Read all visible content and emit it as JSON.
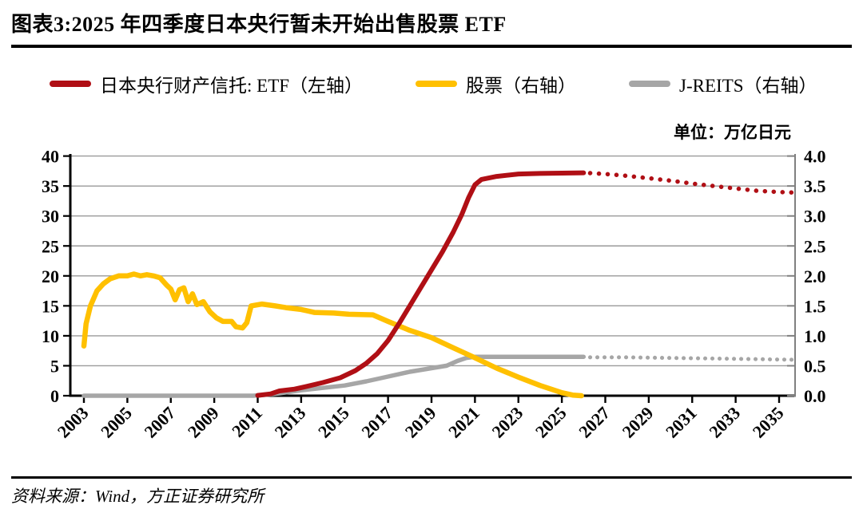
{
  "title": "图表3:2025 年四季度日本央行暂未开始出售股票 ETF",
  "unit_label": "单位：万亿日元",
  "source": "资料来源：Wind，方正证券研究所",
  "legend": [
    {
      "label": "日本央行财产信托: ETF（左轴）",
      "color": "#B00F15"
    },
    {
      "label": "股票（右轴）",
      "color": "#FFC000"
    },
    {
      "label": "J-REITS（右轴）",
      "color": "#A6A6A6"
    }
  ],
  "chart_data": {
    "type": "line",
    "title": "图表3:2025 年四季度日本央行暂未开始出售股票 ETF",
    "unit": "万亿日元",
    "grid": true,
    "legend_position": "top",
    "x_ticks": [
      2003,
      2005,
      2007,
      2009,
      2011,
      2013,
      2015,
      2017,
      2019,
      2021,
      2023,
      2025,
      2027,
      2029,
      2031,
      2033,
      2035
    ],
    "x_range": [
      2002.4,
      2035.8
    ],
    "left_axis": {
      "ticks": [
        0,
        5,
        10,
        15,
        20,
        25,
        30,
        35,
        40
      ],
      "range": [
        0,
        40
      ],
      "label": "ETF（左轴）"
    },
    "right_axis": {
      "ticks": [
        0,
        0.5,
        1,
        1.5,
        2,
        2.5,
        3,
        3.5,
        4
      ],
      "range": [
        0,
        4
      ],
      "label": "股票 / J-REITS（右轴）"
    },
    "series": [
      {
        "name": "日本央行财产信托: ETF（左轴）",
        "axis": "left",
        "color": "#B00F15",
        "solid": [
          [
            2011.0,
            0.05
          ],
          [
            2011.6,
            0.3
          ],
          [
            2012.0,
            0.8
          ],
          [
            2012.7,
            1.1
          ],
          [
            2013.2,
            1.5
          ],
          [
            2014.0,
            2.2
          ],
          [
            2014.8,
            3.0
          ],
          [
            2015.5,
            4.2
          ],
          [
            2016.0,
            5.4
          ],
          [
            2016.5,
            7.0
          ],
          [
            2017.0,
            9.2
          ],
          [
            2017.5,
            12.0
          ],
          [
            2018.0,
            15.0
          ],
          [
            2018.5,
            18.0
          ],
          [
            2019.0,
            21.0
          ],
          [
            2019.5,
            24.0
          ],
          [
            2020.0,
            27.3
          ],
          [
            2020.4,
            30.3
          ],
          [
            2020.7,
            33.0
          ],
          [
            2021.0,
            35.2
          ],
          [
            2021.3,
            36.1
          ],
          [
            2022.0,
            36.6
          ],
          [
            2023.0,
            37.0
          ],
          [
            2024.0,
            37.1
          ],
          [
            2025.0,
            37.15
          ],
          [
            2026.0,
            37.2
          ]
        ],
        "dotted": [
          [
            2026.3,
            37.15
          ],
          [
            2027,
            37.0
          ],
          [
            2028,
            36.7
          ],
          [
            2029,
            36.3
          ],
          [
            2030,
            35.9
          ],
          [
            2031,
            35.4
          ],
          [
            2032,
            35.0
          ],
          [
            2033,
            34.6
          ],
          [
            2034,
            34.2
          ],
          [
            2035,
            34.0
          ],
          [
            2035.7,
            33.9
          ]
        ]
      },
      {
        "name": "股票（右轴）",
        "axis": "right",
        "color": "#FFC000",
        "solid": [
          [
            2003.0,
            0.83
          ],
          [
            2003.1,
            1.2
          ],
          [
            2003.3,
            1.5
          ],
          [
            2003.6,
            1.75
          ],
          [
            2003.9,
            1.87
          ],
          [
            2004.2,
            1.95
          ],
          [
            2004.6,
            2.0
          ],
          [
            2005.0,
            2.0
          ],
          [
            2005.3,
            2.03
          ],
          [
            2005.6,
            2.0
          ],
          [
            2005.9,
            2.02
          ],
          [
            2006.2,
            2.0
          ],
          [
            2006.5,
            1.97
          ],
          [
            2006.8,
            1.85
          ],
          [
            2007.0,
            1.78
          ],
          [
            2007.2,
            1.6
          ],
          [
            2007.4,
            1.77
          ],
          [
            2007.6,
            1.8
          ],
          [
            2007.8,
            1.57
          ],
          [
            2008.0,
            1.7
          ],
          [
            2008.2,
            1.52
          ],
          [
            2008.5,
            1.57
          ],
          [
            2008.8,
            1.4
          ],
          [
            2009.1,
            1.3
          ],
          [
            2009.4,
            1.24
          ],
          [
            2009.8,
            1.24
          ],
          [
            2010.0,
            1.15
          ],
          [
            2010.3,
            1.13
          ],
          [
            2010.5,
            1.22
          ],
          [
            2010.7,
            1.5
          ],
          [
            2011.2,
            1.53
          ],
          [
            2011.8,
            1.5
          ],
          [
            2012.3,
            1.47
          ],
          [
            2013.0,
            1.44
          ],
          [
            2013.6,
            1.39
          ],
          [
            2014.5,
            1.38
          ],
          [
            2015.2,
            1.36
          ],
          [
            2016.3,
            1.35
          ],
          [
            2017.0,
            1.24
          ],
          [
            2018.0,
            1.09
          ],
          [
            2019.0,
            0.97
          ],
          [
            2020.0,
            0.8
          ],
          [
            2020.9,
            0.65
          ],
          [
            2022.0,
            0.46
          ],
          [
            2023.0,
            0.31
          ],
          [
            2024.0,
            0.17
          ],
          [
            2025.0,
            0.05
          ],
          [
            2025.5,
            0.01
          ],
          [
            2025.9,
            0.0
          ]
        ],
        "dotted": []
      },
      {
        "name": "J-REITS（右轴）",
        "axis": "right",
        "color": "#A6A6A6",
        "solid": [
          [
            2003.0,
            0.0
          ],
          [
            2010.8,
            0.0
          ],
          [
            2011.5,
            0.02
          ],
          [
            2012.0,
            0.04
          ],
          [
            2013.0,
            0.09
          ],
          [
            2014.0,
            0.13
          ],
          [
            2015.0,
            0.17
          ],
          [
            2016.0,
            0.24
          ],
          [
            2017.0,
            0.32
          ],
          [
            2018.0,
            0.4
          ],
          [
            2019.0,
            0.46
          ],
          [
            2019.7,
            0.5
          ],
          [
            2020.2,
            0.58
          ],
          [
            2020.6,
            0.63
          ],
          [
            2021.0,
            0.65
          ],
          [
            2022.0,
            0.65
          ],
          [
            2024.0,
            0.65
          ],
          [
            2026.0,
            0.65
          ]
        ],
        "dotted": [
          [
            2026.3,
            0.64
          ],
          [
            2028,
            0.64
          ],
          [
            2030,
            0.63
          ],
          [
            2032,
            0.62
          ],
          [
            2034,
            0.61
          ],
          [
            2035.7,
            0.6
          ]
        ]
      }
    ]
  }
}
